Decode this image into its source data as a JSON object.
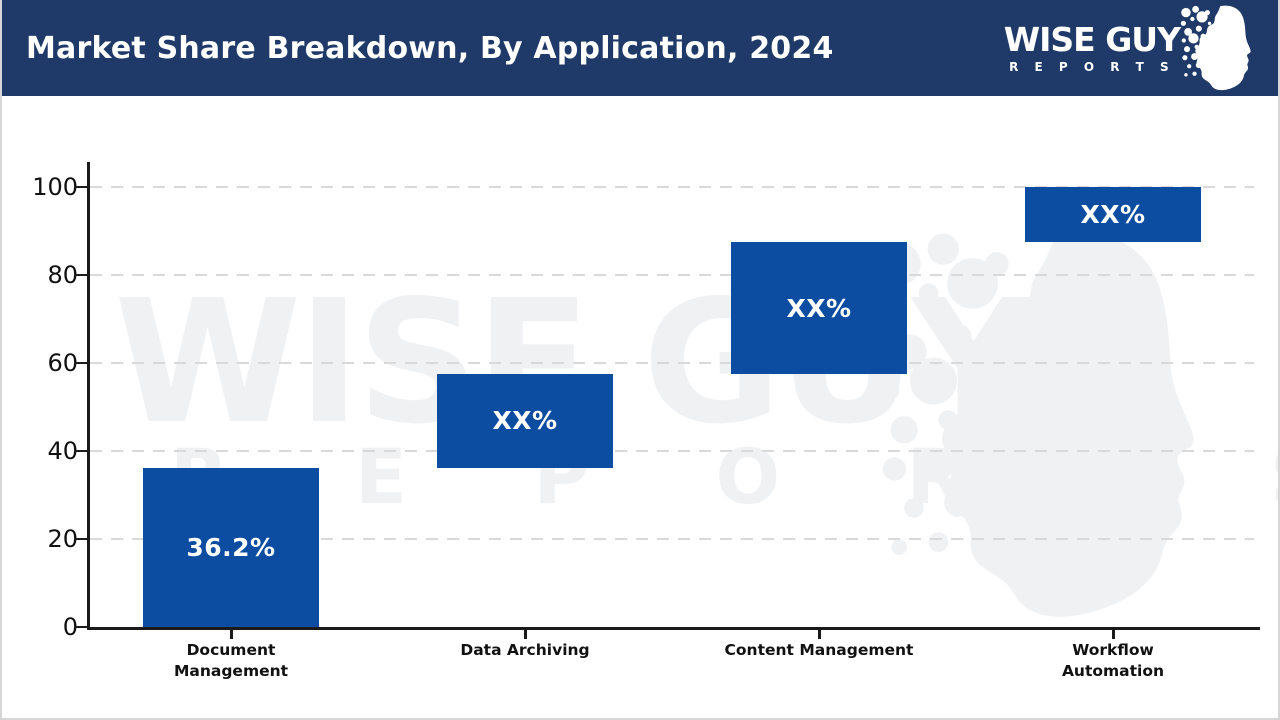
{
  "header": {
    "title": "Market Share Breakdown, By Application, 2024",
    "logo": {
      "name": "WISE GUY",
      "tagline": "R E P O R T S"
    }
  },
  "watermark": {
    "line1": "WISE GUY",
    "line2": "R E P O R T S"
  },
  "chart_data": {
    "type": "bar",
    "subtype": "waterfall-segments",
    "title": "Market Share Breakdown, By Application, 2024",
    "categories": [
      "Document Management",
      "Data Archiving",
      "Content Management",
      "Workflow Automation"
    ],
    "category_lines": [
      [
        "Document",
        "Management"
      ],
      [
        "Data Archiving"
      ],
      [
        "Content Management"
      ],
      [
        "Workflow",
        "Automation"
      ]
    ],
    "bars": [
      {
        "category": "Document Management",
        "label": "36.2%",
        "start": 0,
        "end": 36.2
      },
      {
        "category": "Data Archiving",
        "label": "XX%",
        "start": 36.2,
        "end": 57.5
      },
      {
        "category": "Content Management",
        "label": "XX%",
        "start": 57.5,
        "end": 87.4
      },
      {
        "category": "Workflow Automation",
        "label": "XX%",
        "start": 87.4,
        "end": 100
      }
    ],
    "y_ticks": [
      0,
      20,
      40,
      60,
      80,
      100
    ],
    "ylim": [
      0,
      100
    ],
    "xlabel": "",
    "ylabel": "",
    "grid": "horizontal-dashed",
    "legend": "none",
    "colors": {
      "bar": "#0c4da2",
      "bar_label": "#ffffff",
      "header": "#1f3a68",
      "title_text": "#ffffff",
      "axis": "#1a1a1a",
      "tick_text": "#111111",
      "gridline": "#d9d9d9",
      "watermark": "#f0f1f3",
      "page_border": "#d6d6d6"
    }
  }
}
